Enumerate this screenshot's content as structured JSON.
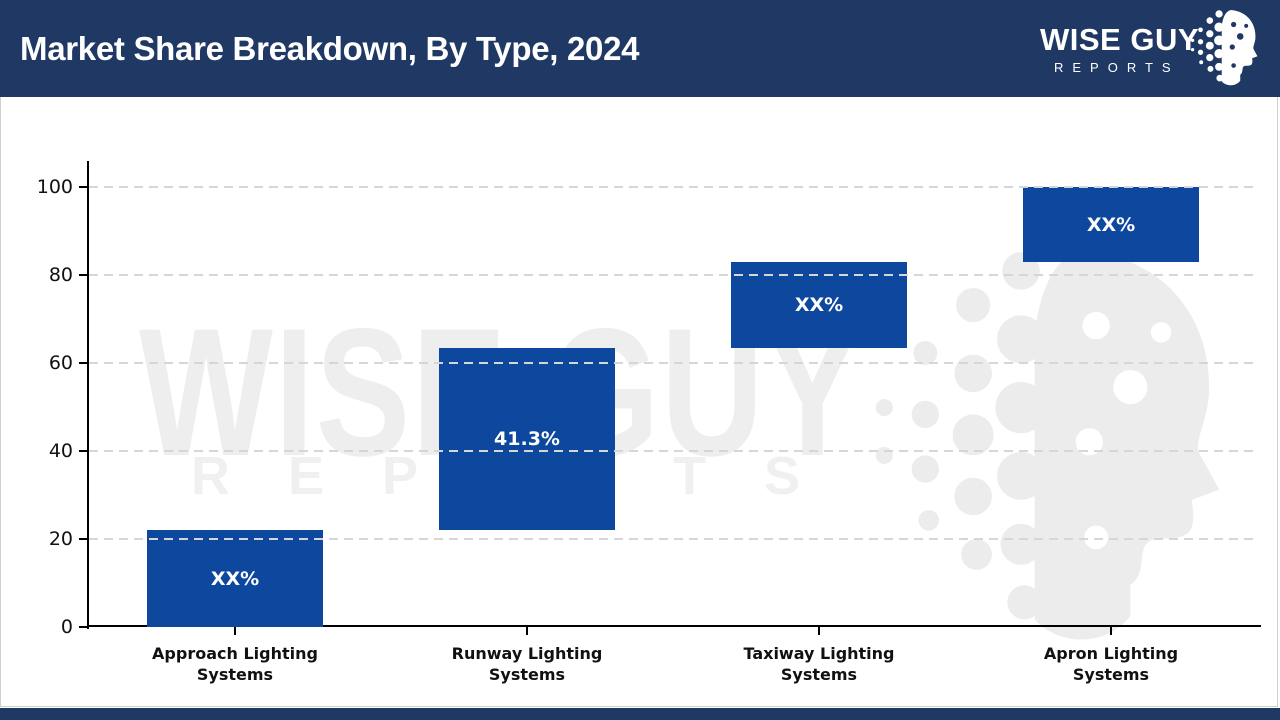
{
  "header": {
    "title": "Market Share Breakdown, By Type, 2024",
    "logo": {
      "line1": "WISE GUY",
      "line2": "REPORTS"
    }
  },
  "watermark": {
    "line1": "WISE GUY",
    "line2": "REPORTS"
  },
  "colors": {
    "header_bg": "#1f3864",
    "footer_bg": "#1f3864",
    "bar": "#0d479e",
    "bar_label": "#ffffff",
    "gridline": "#d6d6d6",
    "axis": "#000000",
    "watermark": "#eeeeee"
  },
  "chart_data": {
    "type": "bar",
    "subtype": "waterfall",
    "title": "Market Share Breakdown, By Type, 2024",
    "categories": [
      "Approach Lighting Systems",
      "Runway Lighting Systems",
      "Taxiway Lighting Systems",
      "Apron Lighting Systems"
    ],
    "segments": [
      {
        "category": "Approach Lighting Systems",
        "label": "XX%",
        "start": 0,
        "end": 22
      },
      {
        "category": "Runway Lighting Systems",
        "label": "41.3%",
        "start": 22,
        "end": 63.3
      },
      {
        "category": "Taxiway Lighting Systems",
        "label": "XX%",
        "start": 63.3,
        "end": 82.9
      },
      {
        "category": "Apron Lighting Systems",
        "label": "XX%",
        "start": 82.9,
        "end": 100
      }
    ],
    "xlabel": "",
    "ylabel": "",
    "yticks": [
      0,
      20,
      40,
      60,
      80,
      100
    ],
    "ylim": [
      0,
      105
    ],
    "grid": true,
    "legend": false
  }
}
